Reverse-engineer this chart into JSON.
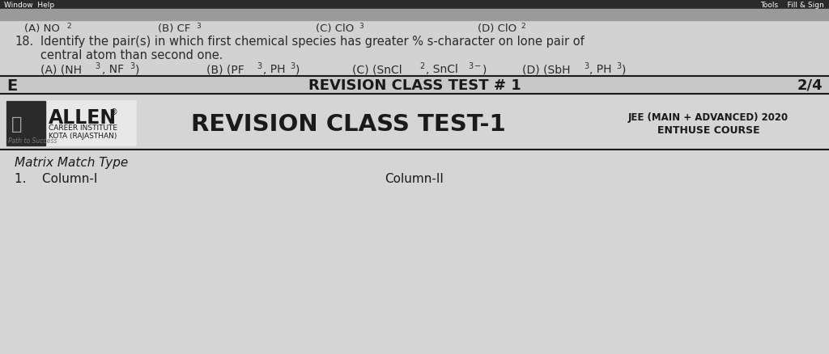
{
  "bg_upper": "#c8c8c8",
  "bg_lower": "#d0d0d0",
  "top_bar_color": "#2a2a2a",
  "toolbar_bg": "#a0a0a0",
  "footer_bar_color": "#c8c8c8",
  "footer_line_color": "#1a1a1a",
  "footer_text_color": "#1a1a1a",
  "footer_left": "E",
  "footer_center": "REVISION CLASS TEST # 1",
  "footer_right": "2/4",
  "allen_box_color": "#1a1a1a",
  "allen_text": "ALLEN",
  "allen_sub1": "CAREER INSTITUTE",
  "allen_sub2": "KOTA (RAJASTHAN)",
  "allen_sub3": "Path to Success",
  "revision_title": "REVISION CLASS TEST-1",
  "jee_text1": "JEE (MAIN + ADVANCED) 2020",
  "jee_text2": "ENTHUSE COURSE",
  "matrix_type": "Matrix Match Type",
  "col1_num": "1.",
  "col1_text": "Column-I",
  "col2": "Column-II",
  "q_num": "18.",
  "q_line1": "Identify the pair(s) in which first chemical species has greater % s-character on lone pair of",
  "q_line2": "central atom than second one.",
  "prev_line_color": "#2a2a2a",
  "text_color": "#2a2a2a"
}
